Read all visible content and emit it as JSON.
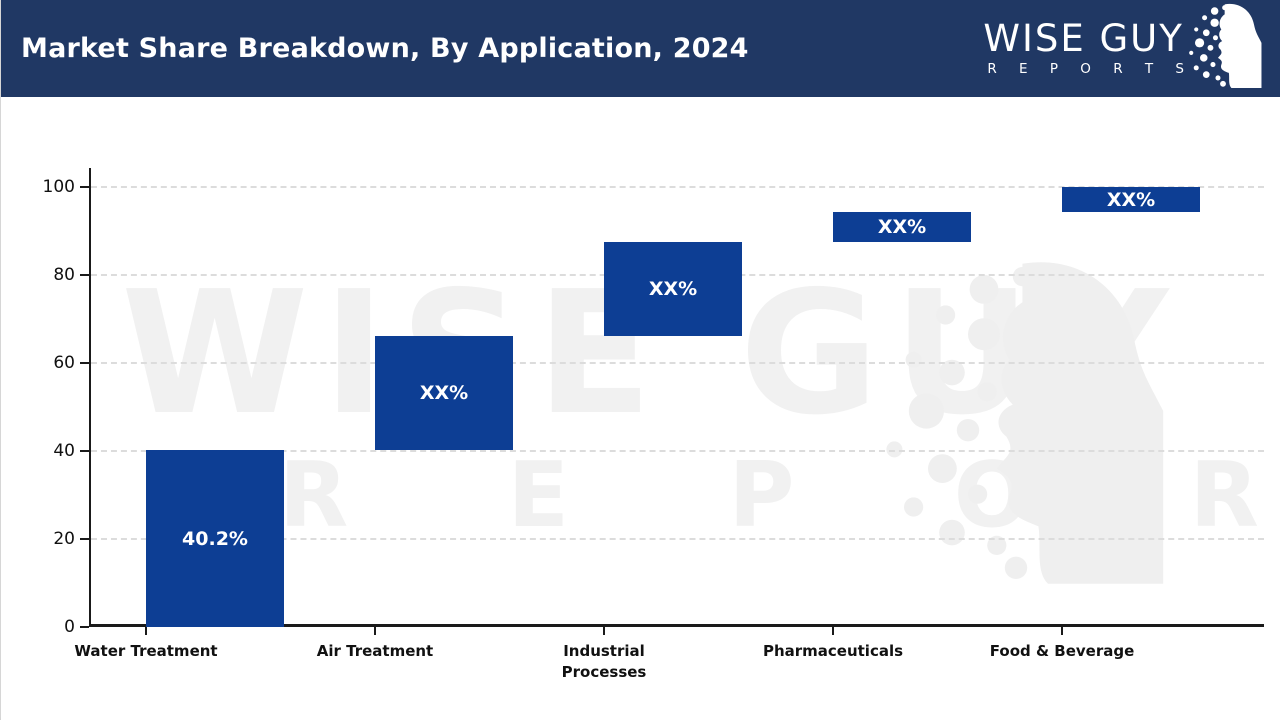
{
  "header": {
    "title": "Market Share Breakdown, By Application, 2024",
    "logo": {
      "line1": "WISE GUY",
      "line2": "R E P O R T S",
      "icon": "dotted-head-profile"
    },
    "background_color": "#203864"
  },
  "watermark": {
    "line1": "WISE GUY",
    "line2": "R E P O R T S",
    "color": "#f1f1f1"
  },
  "chart_data": {
    "type": "bar",
    "subtype": "waterfall",
    "title": "Market Share Breakdown, By Application, 2024",
    "categories": [
      "Water Treatment",
      "Air Treatment",
      "Industrial\nProcesses",
      "Pharmaceuticals",
      "Food & Beverage"
    ],
    "segments": [
      {
        "category": "Water Treatment",
        "start": 0,
        "end": 40.2,
        "label": "40.2%"
      },
      {
        "category": "Air Treatment",
        "start": 40.2,
        "end": 66.1,
        "label": "XX%"
      },
      {
        "category": "Industrial Processes",
        "start": 66.1,
        "end": 87.5,
        "label": "XX%"
      },
      {
        "category": "Pharmaceuticals",
        "start": 87.5,
        "end": 94.3,
        "label": "XX%"
      },
      {
        "category": "Food & Beverage",
        "start": 94.3,
        "end": 100,
        "label": "XX%"
      }
    ],
    "yticks": [
      0,
      20,
      40,
      60,
      80,
      100
    ],
    "ylim": [
      0,
      104.3
    ],
    "xlabel": "",
    "ylabel": "",
    "grid": "horizontal-dashed",
    "legend": "none",
    "bar_color": "#0d3e94",
    "bar_label_color": "#ffffff",
    "axis_color": "#1a1a1a",
    "gridline_color": "#dcdcdc"
  }
}
